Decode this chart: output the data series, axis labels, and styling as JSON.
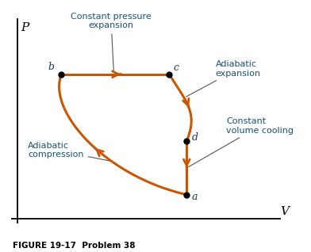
{
  "xlabel": "V",
  "ylabel": "P",
  "curve_color": "#CC5500",
  "dot_color": "black",
  "background_color": "#ffffff",
  "points": {
    "b": [
      0.15,
      0.78
    ],
    "c": [
      0.52,
      0.78
    ],
    "d": [
      0.58,
      0.42
    ],
    "a": [
      0.58,
      0.13
    ]
  },
  "figure_label": "FIGURE 19-17  Problem 38",
  "text_color": "#1a5276",
  "label_color": "#1a3a5c"
}
